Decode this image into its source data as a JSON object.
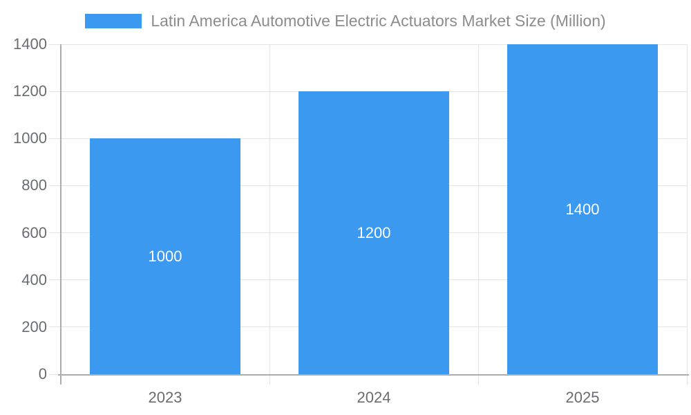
{
  "chart_data": {
    "type": "bar",
    "title": "Latin America Automotive Electric Actuators Market Size (Million)",
    "categories": [
      "2023",
      "2024",
      "2025"
    ],
    "series": [
      {
        "name": "Latin America Automotive Electric Actuators Market Size (Million)",
        "values": [
          1000,
          1200,
          1400
        ]
      }
    ],
    "yticks": [
      0,
      200,
      400,
      600,
      800,
      1000,
      1200,
      1400
    ],
    "ylim": [
      0,
      1400
    ],
    "xlabel": "",
    "ylabel": "",
    "grid": true,
    "legend_position": "top",
    "bar_width_fraction": 0.72,
    "data_labels_inside": true
  },
  "colors": {
    "bar": "#3b99f0",
    "bar_label": "#ffffff",
    "grid": "#e4e4e4",
    "axis": "#adadad",
    "tick_text": "#696c70",
    "title_text": "#8c8c8c",
    "background": "#ffffff"
  }
}
